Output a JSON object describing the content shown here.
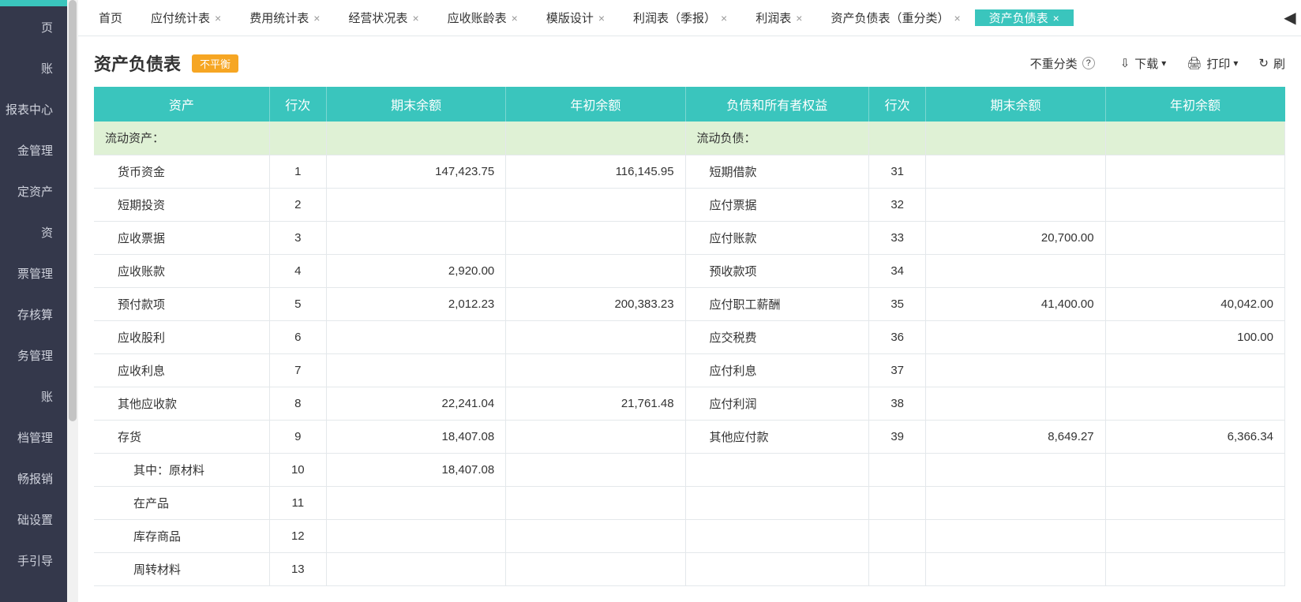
{
  "sidebar": {
    "items": [
      {
        "label": "页"
      },
      {
        "label": "账"
      },
      {
        "label": "报表中心"
      },
      {
        "label": "金管理"
      },
      {
        "label": "定资产"
      },
      {
        "label": "资"
      },
      {
        "label": "票管理"
      },
      {
        "label": "存核算"
      },
      {
        "label": "务管理"
      },
      {
        "label": "账"
      },
      {
        "label": "档管理"
      },
      {
        "label": "畅报销"
      },
      {
        "label": "础设置"
      },
      {
        "label": "手引导"
      }
    ]
  },
  "tabs": {
    "items": [
      {
        "label": "首页",
        "closable": false,
        "active": false
      },
      {
        "label": "应付统计表",
        "closable": true,
        "active": false
      },
      {
        "label": "费用统计表",
        "closable": true,
        "active": false
      },
      {
        "label": "经营状况表",
        "closable": true,
        "active": false
      },
      {
        "label": "应收账龄表",
        "closable": true,
        "active": false
      },
      {
        "label": "模版设计",
        "closable": true,
        "active": false
      },
      {
        "label": "利润表（季报）",
        "closable": true,
        "active": false
      },
      {
        "label": "利润表",
        "closable": true,
        "active": false
      },
      {
        "label": "资产负债表（重分类）",
        "closable": true,
        "active": false
      },
      {
        "label": "资产负债表",
        "closable": true,
        "active": true
      }
    ]
  },
  "page": {
    "title": "资产负债表",
    "badge": "不平衡",
    "actions": {
      "reclass": "不重分类",
      "download": "下载",
      "print": "打印",
      "refresh": "刷"
    }
  },
  "table": {
    "columns": {
      "asset": "资产",
      "row_no": "行次",
      "end_bal": "期末余额",
      "begin_bal": "年初余额",
      "liab": "负债和所有者权益",
      "row_no2": "行次",
      "end_bal2": "期末余额",
      "begin_bal2": "年初余额"
    },
    "section": {
      "asset_section": "流动资产：",
      "liab_section": "流动负债："
    },
    "rows": [
      {
        "asset": "货币资金",
        "row": "1",
        "end": "147,423.75",
        "begin": "116,145.95",
        "liab": "短期借款",
        "row2": "31",
        "end2": "",
        "begin2": ""
      },
      {
        "asset": "短期投资",
        "row": "2",
        "end": "",
        "begin": "",
        "liab": "应付票据",
        "row2": "32",
        "end2": "",
        "begin2": ""
      },
      {
        "asset": "应收票据",
        "row": "3",
        "end": "",
        "begin": "",
        "liab": "应付账款",
        "row2": "33",
        "end2": "20,700.00",
        "begin2": ""
      },
      {
        "asset": "应收账款",
        "row": "4",
        "end": "2,920.00",
        "begin": "",
        "liab": "预收款项",
        "row2": "34",
        "end2": "",
        "begin2": ""
      },
      {
        "asset": "预付款项",
        "row": "5",
        "end": "2,012.23",
        "begin": "200,383.23",
        "liab": "应付职工薪酬",
        "row2": "35",
        "end2": "41,400.00",
        "begin2": "40,042.00"
      },
      {
        "asset": "应收股利",
        "row": "6",
        "end": "",
        "begin": "",
        "liab": "应交税费",
        "row2": "36",
        "end2": "",
        "begin2": "100.00"
      },
      {
        "asset": "应收利息",
        "row": "7",
        "end": "",
        "begin": "",
        "liab": "应付利息",
        "row2": "37",
        "end2": "",
        "begin2": ""
      },
      {
        "asset": "其他应收款",
        "row": "8",
        "end": "22,241.04",
        "begin": "21,761.48",
        "liab": "应付利润",
        "row2": "38",
        "end2": "",
        "begin2": ""
      },
      {
        "asset": "存货",
        "row": "9",
        "end": "18,407.08",
        "begin": "",
        "liab": "其他应付款",
        "row2": "39",
        "end2": "8,649.27",
        "begin2": "6,366.34"
      },
      {
        "asset": "其中：原材料",
        "row": "10",
        "end": "18,407.08",
        "begin": "",
        "liab": "",
        "row2": "",
        "end2": "",
        "begin2": "",
        "indent": 2
      },
      {
        "asset": "在产品",
        "row": "11",
        "end": "",
        "begin": "",
        "liab": "",
        "row2": "",
        "end2": "",
        "begin2": "",
        "indent": 2
      },
      {
        "asset": "库存商品",
        "row": "12",
        "end": "",
        "begin": "",
        "liab": "",
        "row2": "",
        "end2": "",
        "begin2": "",
        "indent": 2
      },
      {
        "asset": "周转材料",
        "row": "13",
        "end": "",
        "begin": "",
        "liab": "",
        "row2": "",
        "end2": "",
        "begin2": "",
        "indent": 2
      }
    ]
  },
  "style": {
    "colors": {
      "accent": "#3ac5bd",
      "sidebar_bg": "#34384b",
      "sidebar_text": "#cfd2dc",
      "badge_bg": "#f6a623",
      "section_bg": "#dff1d5",
      "border": "#e4e8eb",
      "text": "#333333"
    }
  }
}
